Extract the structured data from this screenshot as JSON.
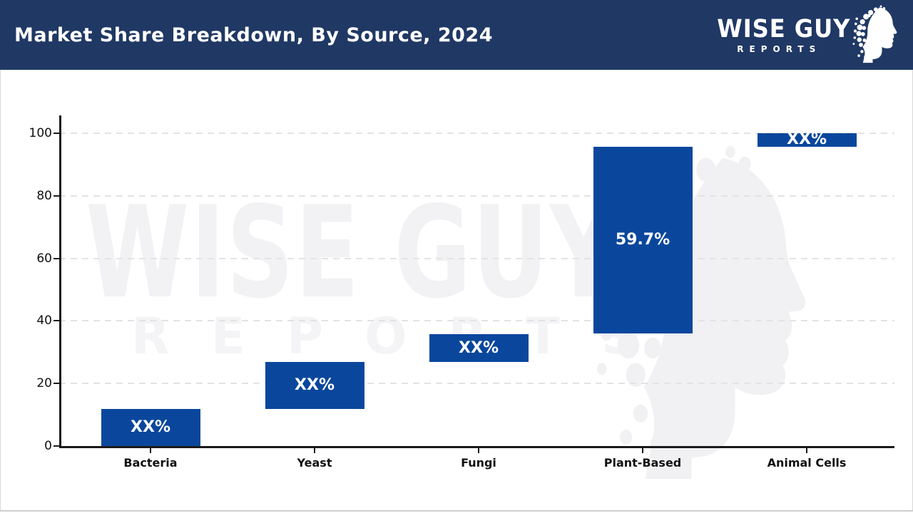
{
  "header": {
    "title": "Market Share Breakdown, By Source, 2024",
    "bg_color": "#203864",
    "brand": {
      "line1": "WISE GUY",
      "line2": "REPORTS",
      "head_icon": "dotted-head-profile"
    }
  },
  "watermark": {
    "line1": "WISE GUY",
    "line2": "REPORTS",
    "head_icon": "dotted-head-profile"
  },
  "chart_data": {
    "type": "bar",
    "subtype": "floating-waterfall",
    "title": "Market Share Breakdown, By Source, 2024",
    "categories": [
      "Bacteria",
      "Yeast",
      "Fungi",
      "Plant-Based",
      "Animal Cells"
    ],
    "series": [
      {
        "name": "Market share (%)",
        "segments": [
          {
            "category": "Bacteria",
            "start": 0,
            "end": 11.9,
            "label": "XX%"
          },
          {
            "category": "Yeast",
            "start": 11.9,
            "end": 26.9,
            "label": "XX%"
          },
          {
            "category": "Fungi",
            "start": 26.9,
            "end": 35.7,
            "label": "XX%"
          },
          {
            "category": "Plant-Based",
            "start": 36.0,
            "end": 95.7,
            "label": "59.7%"
          },
          {
            "category": "Animal Cells",
            "start": 95.7,
            "end": 100.0,
            "label": "XX%"
          }
        ]
      }
    ],
    "xlabel": "",
    "ylabel": "",
    "ylim": [
      0,
      105.5
    ],
    "yticks": [
      0,
      20,
      40,
      60,
      80,
      100
    ],
    "grid": "horizontal-dashed",
    "legend": "none",
    "bar_color": "#0a479c",
    "bar_label_color": "#ffffff",
    "axis_color": "#1a1a1a",
    "grid_color": "#e3e3e5"
  }
}
